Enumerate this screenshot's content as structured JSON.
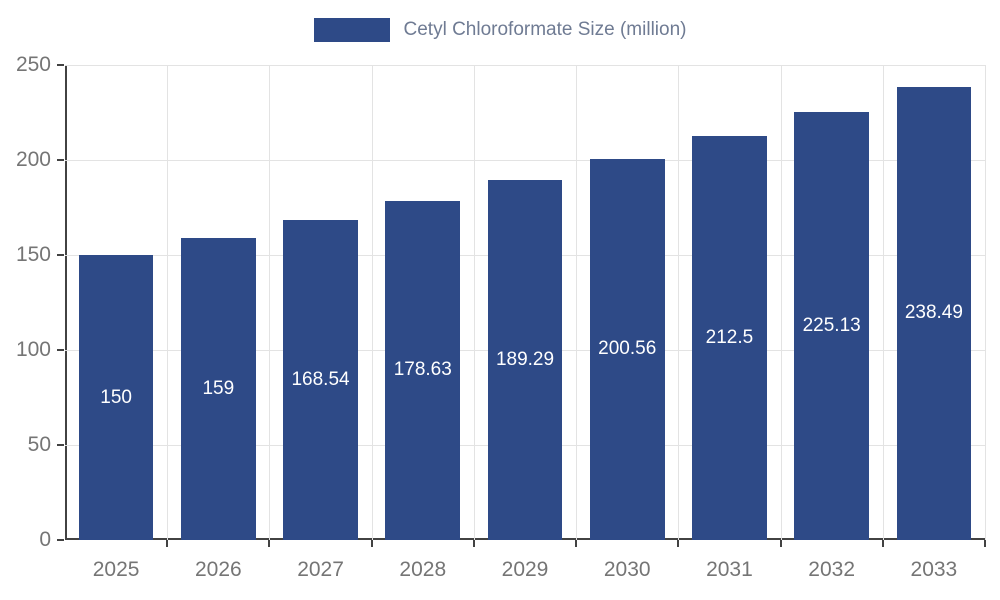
{
  "chart_data": {
    "type": "bar",
    "legend": "Cetyl Chloroformate Size (million)",
    "categories": [
      "2025",
      "2026",
      "2027",
      "2028",
      "2029",
      "2030",
      "2031",
      "2032",
      "2033"
    ],
    "values": [
      150,
      159,
      168.54,
      178.63,
      189.29,
      200.56,
      212.5,
      225.13,
      238.49
    ],
    "value_labels": [
      "150",
      "159",
      "168.54",
      "178.63",
      "189.29",
      "200.56",
      "212.5",
      "225.13",
      "238.49"
    ],
    "xlabel": "",
    "ylabel": "",
    "ylim": [
      0,
      250
    ],
    "yticks": [
      0,
      50,
      100,
      150,
      200,
      250
    ],
    "grid": true,
    "legend_position": "top-center",
    "colors": {
      "bar": "#2e4a87",
      "axis": "#424242",
      "grid": "#e3e3e3",
      "tick_label": "#757575",
      "legend_text": "#6f7b93",
      "value_label": "#ffffff"
    }
  }
}
